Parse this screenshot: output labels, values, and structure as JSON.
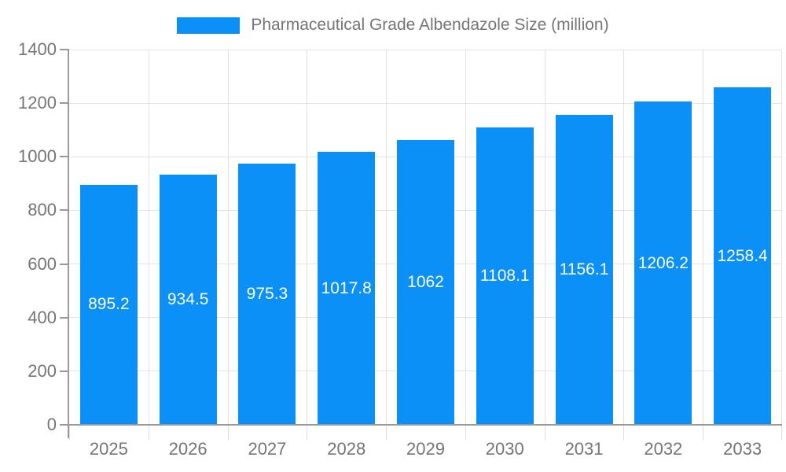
{
  "colors": {
    "bar": "#0a90f7",
    "grid": "#e2e2e2",
    "axis": "#999999",
    "tick_minor": "#dddddd",
    "label_text": "#757575",
    "value_text": "#ffffff"
  },
  "legend": {
    "items": [
      {
        "label": "Pharmaceutical Grade Albendazole Size (million)",
        "color": "#0a90f7"
      }
    ]
  },
  "chart_data": {
    "type": "bar",
    "title": "Pharmaceutical Grade Albendazole Size (million)",
    "categories": [
      "2025",
      "2026",
      "2027",
      "2028",
      "2029",
      "2030",
      "2031",
      "2032",
      "2033"
    ],
    "values": [
      895.2,
      934.5,
      975.3,
      1017.8,
      1062,
      1108.1,
      1156.1,
      1206.2,
      1258.4
    ],
    "value_labels": [
      "895.2",
      "934.5",
      "975.3",
      "1017.8",
      "1062",
      "1108.1",
      "1156.1",
      "1206.2",
      "1258.4"
    ],
    "xlabel": "",
    "ylabel": "",
    "ylim": [
      0,
      1400
    ],
    "yticks": [
      0,
      200,
      400,
      600,
      800,
      1000,
      1200,
      1400
    ],
    "grid": true,
    "legend_position": "top"
  }
}
